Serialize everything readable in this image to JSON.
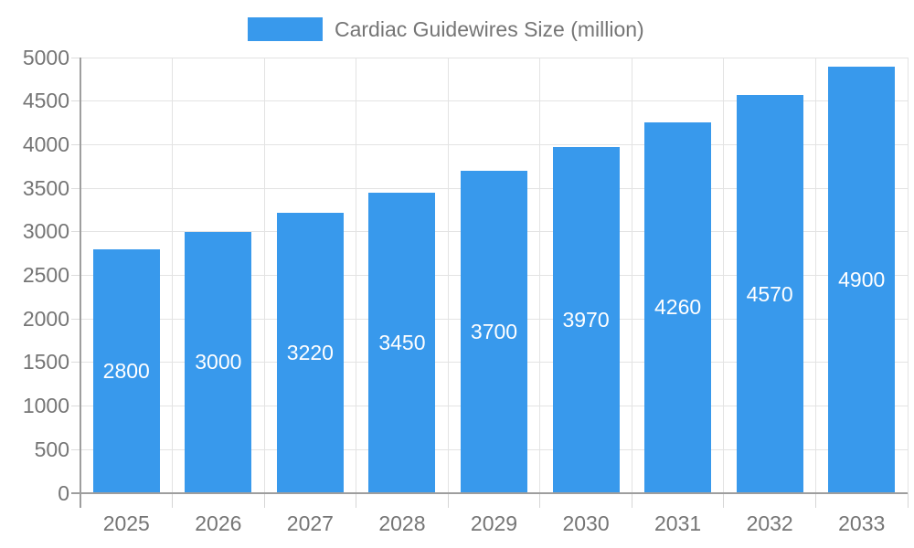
{
  "legend": {
    "label": "Cardiac Guidewires Size (million)"
  },
  "colors": {
    "bar": "#3899ec",
    "axis_text": "#757575",
    "bar_label_text": "#ffffff",
    "gridline": "#e3e3e3",
    "axis_line": "#9e9e9e",
    "background": "#ffffff"
  },
  "chart_data": {
    "type": "bar",
    "title": "Cardiac Guidewires Size (million)",
    "categories": [
      "2025",
      "2026",
      "2027",
      "2028",
      "2029",
      "2030",
      "2031",
      "2032",
      "2033"
    ],
    "values": [
      2800,
      3000,
      3220,
      3450,
      3700,
      3970,
      4260,
      4570,
      4900
    ],
    "series_name": "Cardiac Guidewires Size (million)",
    "xlabel": "",
    "ylabel": "",
    "ylim": [
      0,
      5000
    ],
    "ytick_step": 500,
    "yticks": [
      0,
      500,
      1000,
      1500,
      2000,
      2500,
      3000,
      3500,
      4000,
      4500,
      5000
    ],
    "grid": true,
    "legend_position": "top",
    "data_labels": "inside-center"
  }
}
